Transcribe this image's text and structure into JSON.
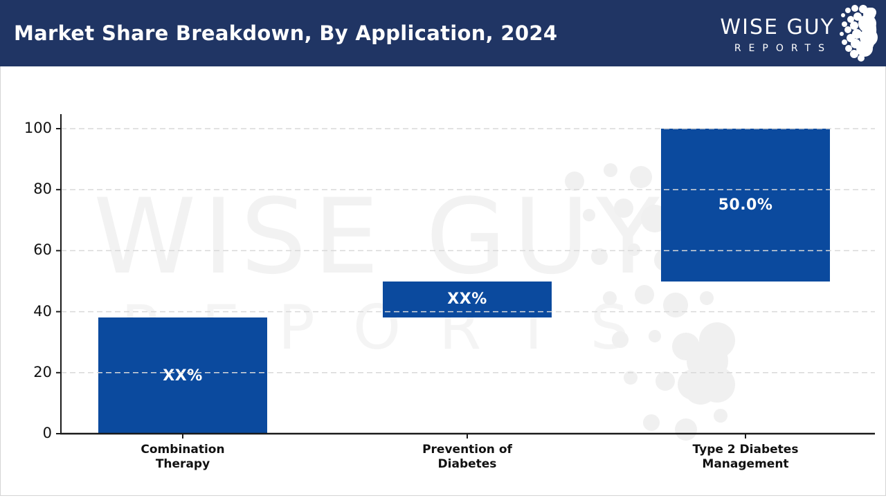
{
  "header": {
    "title": "Market Share Breakdown, By Application, 2024",
    "logo": {
      "line1": "WISE GUY",
      "line2": "REPORTS"
    }
  },
  "watermark": {
    "line1": "WISE GUY",
    "line2": "REPORTS"
  },
  "chart_data": {
    "type": "bar",
    "variant": "floating-waterfall",
    "title": "Market Share Breakdown, By Application, 2024",
    "categories": [
      [
        "Combination",
        "Therapy"
      ],
      [
        "Prevention of",
        "Diabetes"
      ],
      [
        "Type 2 Diabetes",
        "Management"
      ]
    ],
    "bars": [
      {
        "category": "Combination Therapy",
        "label": "XX%",
        "start": 0,
        "end": 38
      },
      {
        "category": "Prevention of Diabetes",
        "label": "XX%",
        "start": 38,
        "end": 50
      },
      {
        "category": "Type 2 Diabetes Management",
        "label": "50.0%",
        "start": 50,
        "end": 100
      }
    ],
    "ylim": [
      0,
      100
    ],
    "yticks": [
      0,
      20,
      40,
      60,
      80,
      100
    ],
    "xlabel": "",
    "ylabel": "",
    "grid": "horizontal-dashed",
    "legend": "none",
    "colors": {
      "header_bg": "#203564",
      "bar": "#0b4a9e",
      "gridline": "#d9d9d9",
      "axis": "#1a1a1a",
      "bar_label": "#ffffff",
      "tick_text": "#111111"
    }
  }
}
